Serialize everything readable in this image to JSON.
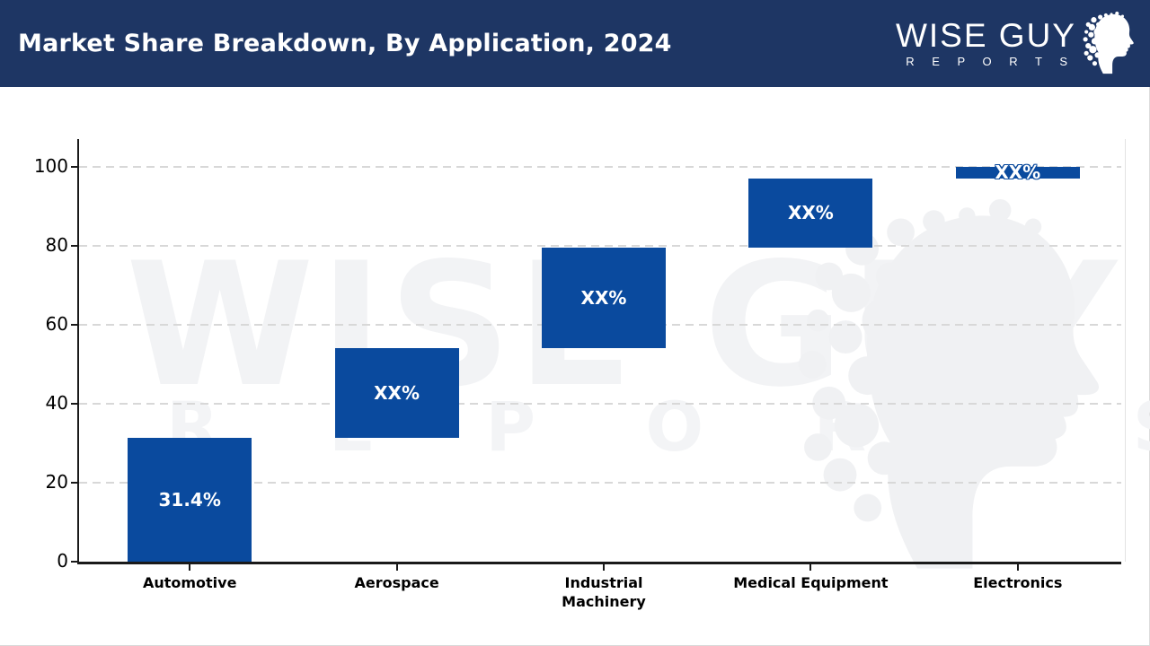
{
  "header": {
    "title": "Market Share Breakdown, By Application, 2024",
    "bg_color": "#1e3664",
    "logo": {
      "name": "WISE GUY",
      "subtitle": "R E P O R T S"
    }
  },
  "watermark": {
    "line1": "WISE GUY",
    "line2": "R E P O R T S"
  },
  "colors": {
    "header_bg": "#1e3664",
    "bar": "#0a4a9e",
    "grid": "#d8d8d8",
    "axis": "#1a1a1a",
    "bar_label": "#ffffff",
    "watermark": "#f1f2f4"
  },
  "chart_data": {
    "type": "bar",
    "subtype": "waterfall",
    "title": "Market Share Breakdown, By Application, 2024",
    "xlabel": "",
    "ylabel": "",
    "ylim": [
      0,
      100
    ],
    "yticks": [
      0,
      20,
      40,
      60,
      80,
      100
    ],
    "grid": "horizontal-dashed",
    "legend": "none",
    "bar_color": "#0a4a9e",
    "bars": [
      {
        "category": "Automotive",
        "category_lines": [
          "Automotive"
        ],
        "start": 0,
        "end": 31.4,
        "label": "31.4%"
      },
      {
        "category": "Aerospace",
        "category_lines": [
          "Aerospace"
        ],
        "start": 31.4,
        "end": 54.2,
        "label": "XX%"
      },
      {
        "category": "Industrial Machinery",
        "category_lines": [
          "Industrial",
          "Machinery"
        ],
        "start": 54.2,
        "end": 79.6,
        "label": "XX%"
      },
      {
        "category": "Medical Equipment",
        "category_lines": [
          "Medical Equipment"
        ],
        "start": 79.6,
        "end": 97.1,
        "label": "XX%"
      },
      {
        "category": "Electronics",
        "category_lines": [
          "Electronics"
        ],
        "start": 97.1,
        "end": 100,
        "label": "XX%"
      }
    ]
  }
}
